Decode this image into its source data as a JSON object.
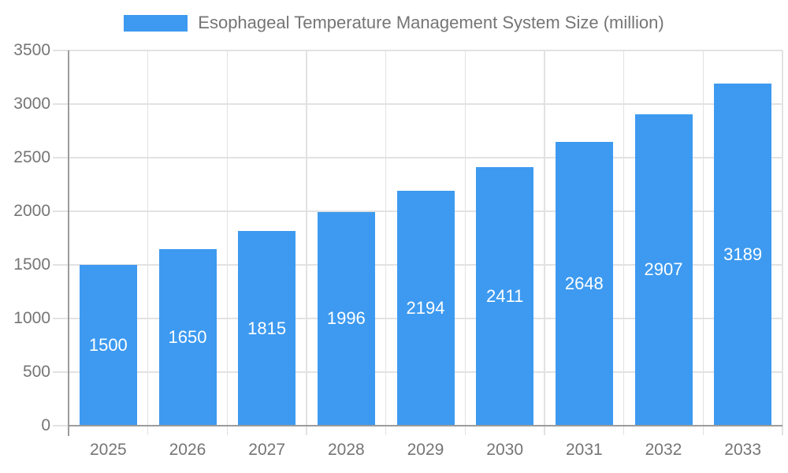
{
  "chart_data": {
    "type": "bar",
    "title": "Esophageal Temperature Management System Size (million)",
    "categories": [
      "2025",
      "2026",
      "2027",
      "2028",
      "2029",
      "2030",
      "2031",
      "2032",
      "2033"
    ],
    "values": [
      1500,
      1650,
      1815,
      1996,
      2194,
      2411,
      2648,
      2907,
      3189
    ],
    "xlabel": "",
    "ylabel": "",
    "ylim": [
      0,
      3500
    ],
    "yticks": [
      0,
      500,
      1000,
      1500,
      2000,
      2500,
      3000,
      3500
    ],
    "grid": true,
    "legend_position": "top-center",
    "colors": {
      "bar": "#3d9af0",
      "value_label": "#ffffff",
      "tick_label": "#757575",
      "legend_text": "#757575",
      "gridline": "#e2e2e2",
      "axis": "#9c9c9c",
      "background": "#ffffff"
    }
  }
}
